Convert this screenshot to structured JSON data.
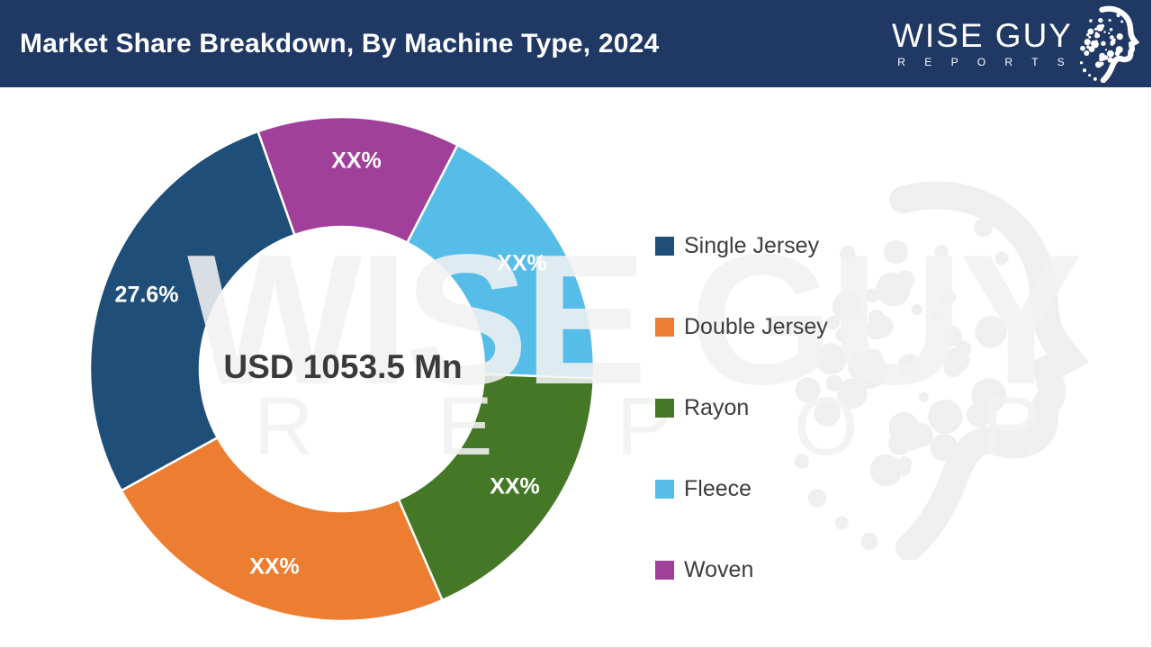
{
  "header": {
    "title": "Market Share Breakdown, By Machine Type, 2024",
    "bg_color": "#1f3864",
    "logo": {
      "line1": "WISE GUY",
      "line2": "R E P O R T S"
    }
  },
  "watermark": {
    "line1": "WISE GUY",
    "line2": "R E P O R T S"
  },
  "chart_data": {
    "type": "pie",
    "subtype": "donut",
    "title": "Market Share Breakdown, By Machine Type, 2024",
    "center_label": "USD 1053.5 Mn",
    "start_angle_deg": -19.5,
    "clockwise": true,
    "segments": [
      {
        "label": "Woven",
        "value_pct": 13.0,
        "display": "XX%",
        "color": "#a1409b"
      },
      {
        "label": "Fleece",
        "value_pct": 18.0,
        "display": "XX%",
        "color": "#55bde8"
      },
      {
        "label": "Rayon",
        "value_pct": 17.9,
        "display": "XX%",
        "color": "#457826"
      },
      {
        "label": "Double Jersey",
        "value_pct": 23.5,
        "display": "XX%",
        "color": "#ed7d31"
      },
      {
        "label": "Single Jersey",
        "value_pct": 27.6,
        "display": "27.6%",
        "color": "#1f4e78"
      }
    ],
    "legend": {
      "position": "right",
      "items": [
        {
          "label": "Single Jersey",
          "color": "#1f4e78"
        },
        {
          "label": "Double Jersey",
          "color": "#ed7d31"
        },
        {
          "label": "Rayon",
          "color": "#457826"
        },
        {
          "label": "Fleece",
          "color": "#55bde8"
        },
        {
          "label": "Woven",
          "color": "#a1409b"
        }
      ]
    }
  }
}
